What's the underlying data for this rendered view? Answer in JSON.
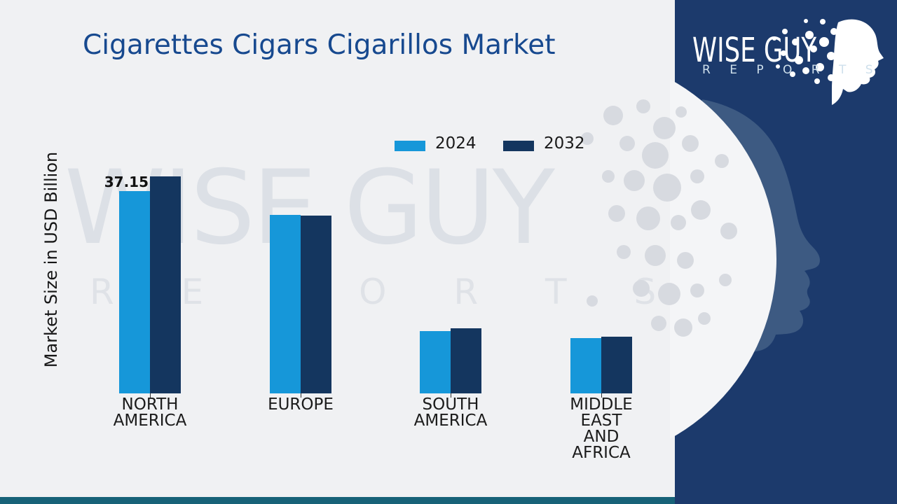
{
  "title": "Cigarettes Cigars Cigarillos Market",
  "logo": {
    "wordmark": "WISE GUY",
    "reports_line": "R E P O R T S"
  },
  "watermark": {
    "wordmark": "WISE GUY",
    "reports_line": "R E P O R T S"
  },
  "legend": {
    "items": [
      {
        "label": "2024",
        "color": "#1697d9"
      },
      {
        "label": "2032",
        "color": "#14365f"
      }
    ]
  },
  "colors": {
    "bar_2024": "#1697d9",
    "bar_2032": "#14365f",
    "title_blue": "#17498f",
    "panel_navy": "#1c3a6c",
    "face_blue": "#3d5a82",
    "bottom_bar_teal": "#176278",
    "background": "#f0f1f3"
  },
  "chart_data": {
    "type": "bar",
    "title": "Cigarettes Cigars Cigarillos Market",
    "xlabel": "",
    "ylabel": "Market Size in USD Billion",
    "categories": [
      "NORTH\nAMERICA",
      "EUROPE",
      "SOUTH\nAMERICA",
      "MIDDLE\nEAST\nAND\nAFRICA"
    ],
    "series": [
      {
        "name": "2024",
        "color": "#1697d9",
        "values": [
          37.15,
          32.8,
          11.4,
          10.2
        ],
        "value_labels": [
          "37.15",
          null,
          null,
          null
        ]
      },
      {
        "name": "2032",
        "color": "#14365f",
        "values": [
          39.8,
          32.6,
          12.0,
          10.4
        ],
        "value_labels": [
          null,
          null,
          null,
          null
        ]
      }
    ],
    "ylim": [
      0,
      42
    ],
    "grid": false,
    "legend_position": "top"
  }
}
